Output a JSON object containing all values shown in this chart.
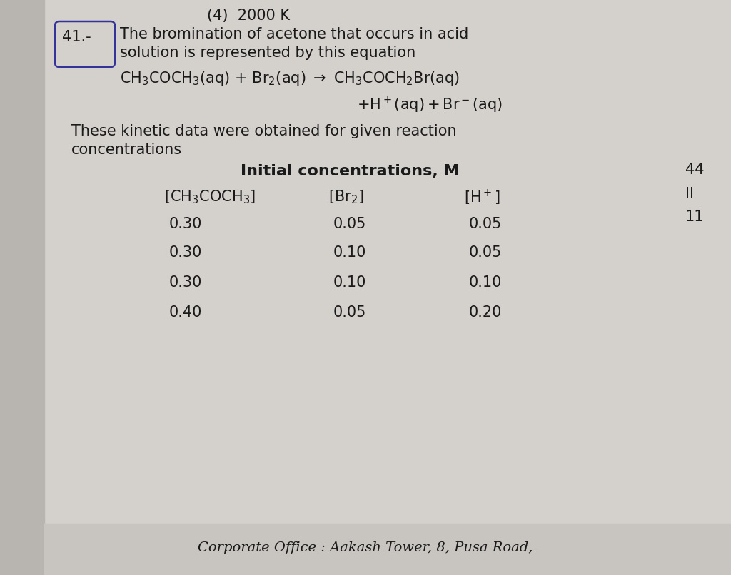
{
  "bg_color": "#d4d0cc",
  "left_bar_color": "#b8b4b0",
  "footer_bg_color": "#c8c4c0",
  "text_color": "#1a1a1a",
  "top_text": "(4)  2000 K",
  "question_number": "41.-",
  "question_text_line1": "The bromination of acetone that occurs in acid",
  "question_text_line2": "solution is represented by this equation",
  "para_line1": "These kinetic data were obtained for given reaction",
  "para_line2": "concentrations",
  "table_header_main": "Initial concentrations, M",
  "table_data": [
    [
      "0.30",
      "0.05",
      "0.05"
    ],
    [
      "0.30",
      "0.10",
      "0.05"
    ],
    [
      "0.30",
      "0.10",
      "0.10"
    ],
    [
      "0.40",
      "0.05",
      "0.20"
    ]
  ],
  "footer_text": "Corporate Office : Aakash Tower, 8, Pusa Road,",
  "side_note_44": "44",
  "side_note_roman": "II",
  "side_note_11": "11"
}
